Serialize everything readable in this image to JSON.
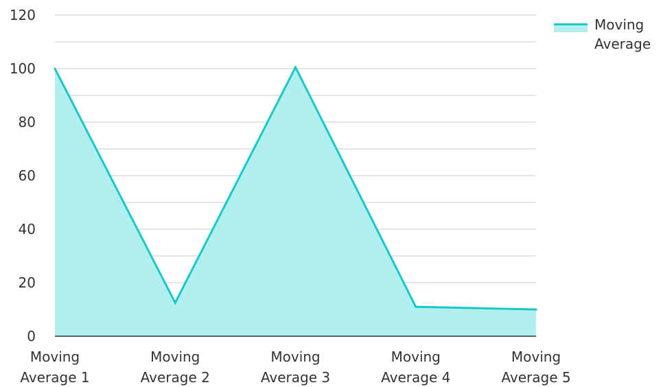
{
  "chart_data": {
    "type": "area",
    "categories": [
      [
        "Moving",
        "Average 1"
      ],
      [
        "Moving",
        "Average 2"
      ],
      [
        "Moving",
        "Average 3"
      ],
      [
        "Moving",
        "Average 4"
      ],
      [
        "Moving",
        "Average 5"
      ]
    ],
    "series": [
      {
        "name": [
          "Moving",
          "Average"
        ],
        "values": [
          100,
          12.5,
          100.5,
          11,
          10
        ],
        "line_color": "#16c9c9",
        "fill_color": "#b3eeee"
      }
    ],
    "y_ticks": [
      "0",
      "20",
      "40",
      "60",
      "80",
      "100",
      "120"
    ],
    "ylim": [
      0,
      120
    ],
    "grid": true,
    "legend": "top-right",
    "grid_color": "#c8c8c8",
    "axis_color": "#333333"
  }
}
